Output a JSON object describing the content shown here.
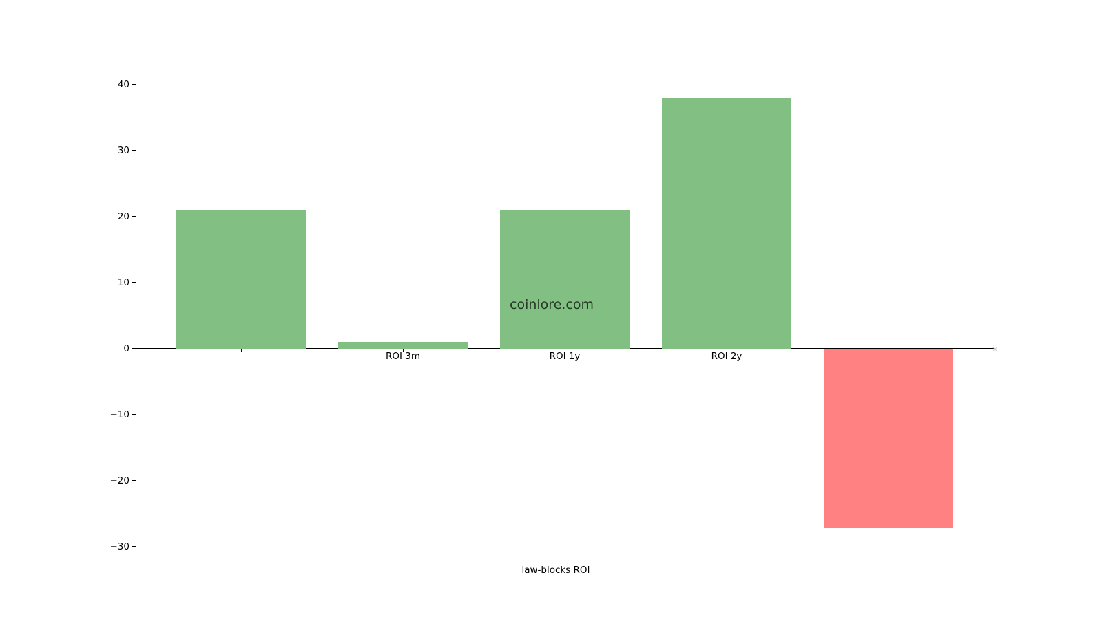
{
  "page": {
    "background": "#ffffff"
  },
  "chart_data": {
    "type": "bar",
    "title": "law-blocks ROI",
    "watermark": "coinlore.com",
    "categories": [
      "",
      "ROI 3m",
      "ROI 1y",
      "ROI 2y",
      ""
    ],
    "values": [
      21,
      1,
      21,
      38,
      -27
    ],
    "series": [
      {
        "name": "law-blocks ROI",
        "values": [
          21,
          1,
          21,
          38,
          -27
        ]
      }
    ],
    "xlabel": "",
    "ylabel": "",
    "yticks": [
      40,
      30,
      20,
      10,
      0,
      -10,
      -20,
      -30
    ],
    "ylim": [
      -30,
      42
    ],
    "xticks_shown": [
      0,
      1,
      2,
      3
    ],
    "grid": false,
    "legend": null,
    "colors": {
      "positive": "#82bf82",
      "negative": "#ff8181",
      "axis": "#000000",
      "tick_label": "#000000"
    }
  }
}
